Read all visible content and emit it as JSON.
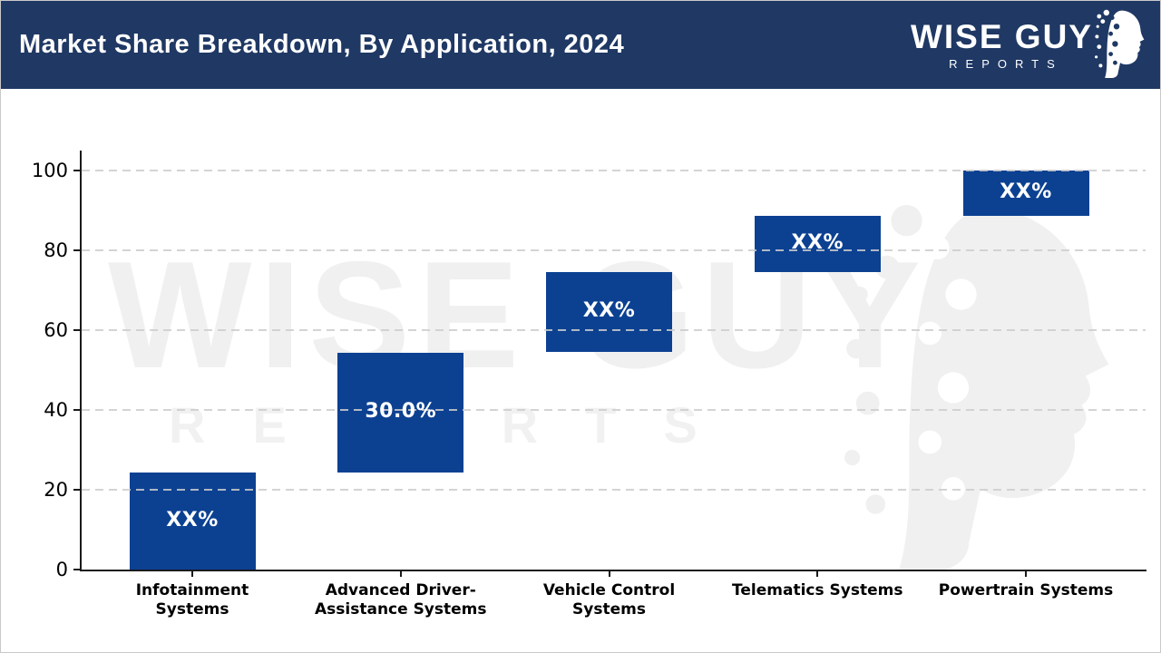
{
  "header": {
    "title": "Market Share Breakdown, By Application, 2024",
    "logo": {
      "name": "WISE GUY",
      "subtitle": "REPORTS"
    }
  },
  "watermark": {
    "line1": "WISE GUY",
    "line2": "REPORTS"
  },
  "colors": {
    "header_bg": "#1f3864",
    "bar": "#0c4192",
    "bar_label": "#ffffff",
    "gridline": "#cdcdcd",
    "axis": "#1a1a1a",
    "watermark": "#f0f0f0",
    "page_border": "#c9c9c9"
  },
  "chart_data": {
    "type": "bar",
    "subtype": "floating-waterfall",
    "title": "Market Share Breakdown, By Application, 2024",
    "xlabel": "",
    "ylabel": "",
    "ylim": [
      0,
      105
    ],
    "yticks": [
      0,
      20,
      40,
      60,
      80,
      100
    ],
    "grid": "dashed-horizontal",
    "legend": "none",
    "categories": [
      "Infotainment Systems",
      "Advanced Driver-Assistance Systems",
      "Vehicle Control Systems",
      "Telematics Systems",
      "Powertrain Systems"
    ],
    "category_lines": [
      [
        "Infotainment",
        "Systems"
      ],
      [
        "Advanced Driver-",
        "Assistance Systems"
      ],
      [
        "Vehicle Control",
        "Systems"
      ],
      [
        "Telematics Systems"
      ],
      [
        "Powertrain Systems"
      ]
    ],
    "segments": [
      {
        "label": "XX%",
        "start": 0,
        "end": 24.3,
        "value_pct": 24.3
      },
      {
        "label": "30.0%",
        "start": 24.3,
        "end": 54.3,
        "value_pct": 30.0
      },
      {
        "label": "XX%",
        "start": 54.5,
        "end": 74.5,
        "value_pct": 20.0
      },
      {
        "label": "XX%",
        "start": 74.5,
        "end": 88.6,
        "value_pct": 14.1
      },
      {
        "label": "XX%",
        "start": 88.6,
        "end": 100.0,
        "value_pct": 11.4
      }
    ]
  }
}
